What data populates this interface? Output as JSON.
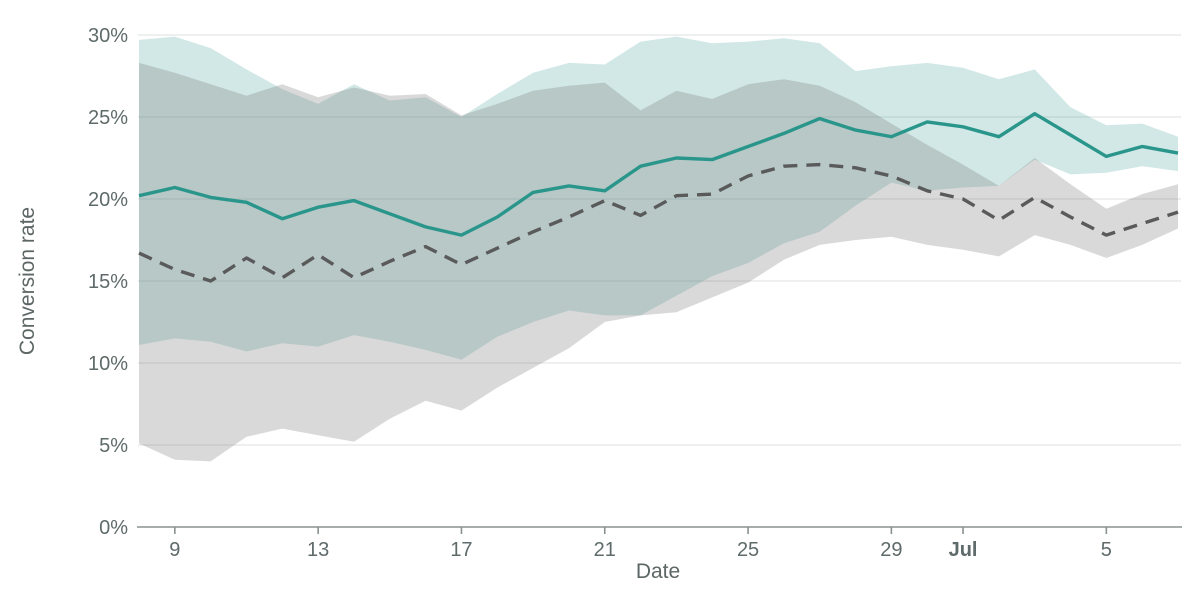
{
  "chart_data": {
    "type": "line",
    "title": "",
    "xlabel": "Date",
    "ylabel": "Conversion rate",
    "grid": true,
    "legend": "none",
    "ylim": [
      0,
      30
    ],
    "y_ticks": [
      {
        "value": 0,
        "label": "0%"
      },
      {
        "value": 5,
        "label": "5%"
      },
      {
        "value": 10,
        "label": "10%"
      },
      {
        "value": 15,
        "label": "15%"
      },
      {
        "value": 20,
        "label": "20%"
      },
      {
        "value": 25,
        "label": "25%"
      },
      {
        "value": 30,
        "label": "30%"
      }
    ],
    "x": [
      "Jun 8",
      "Jun 9",
      "Jun 10",
      "Jun 11",
      "Jun 12",
      "Jun 13",
      "Jun 14",
      "Jun 15",
      "Jun 16",
      "Jun 17",
      "Jun 18",
      "Jun 19",
      "Jun 20",
      "Jun 21",
      "Jun 22",
      "Jun 23",
      "Jun 24",
      "Jun 25",
      "Jun 26",
      "Jun 27",
      "Jun 28",
      "Jun 29",
      "Jun 30",
      "Jul 1",
      "Jul 2",
      "Jul 3",
      "Jul 4",
      "Jul 5",
      "Jul 6",
      "Jul 7"
    ],
    "x_ticks": [
      {
        "index": 1,
        "label": "9",
        "bold": false
      },
      {
        "index": 5,
        "label": "13",
        "bold": false
      },
      {
        "index": 9,
        "label": "17",
        "bold": false
      },
      {
        "index": 13,
        "label": "21",
        "bold": false
      },
      {
        "index": 17,
        "label": "25",
        "bold": false
      },
      {
        "index": 21,
        "label": "29",
        "bold": false
      },
      {
        "index": 23,
        "label": "Jul",
        "bold": true
      },
      {
        "index": 27,
        "label": "5",
        "bold": false
      }
    ],
    "series": [
      {
        "name": "series_solid_teal",
        "style": "solid",
        "values": [
          20.2,
          20.7,
          20.1,
          19.8,
          18.8,
          19.5,
          19.9,
          19.1,
          18.3,
          17.8,
          18.9,
          20.4,
          20.8,
          20.5,
          22.0,
          22.5,
          22.4,
          23.2,
          24.0,
          24.9,
          24.2,
          23.8,
          24.7,
          24.4,
          23.8,
          25.2,
          23.9,
          22.6,
          23.2,
          22.8
        ],
        "band_upper": [
          29.7,
          29.9,
          29.2,
          27.9,
          26.7,
          25.8,
          27.0,
          26.0,
          26.2,
          25.0,
          26.4,
          27.7,
          28.3,
          28.2,
          29.6,
          29.9,
          29.5,
          29.6,
          29.8,
          29.5,
          27.8,
          28.1,
          28.3,
          28.0,
          27.3,
          27.9,
          25.6,
          24.5,
          24.6,
          23.8
        ],
        "band_lower": [
          11.1,
          11.5,
          11.3,
          10.7,
          11.2,
          11.0,
          11.7,
          11.3,
          10.8,
          10.2,
          11.6,
          12.5,
          13.2,
          12.9,
          12.9,
          14.1,
          15.3,
          16.1,
          17.3,
          18.0,
          19.6,
          21.0,
          20.5,
          20.7,
          20.8,
          22.4,
          21.5,
          21.6,
          22.0,
          21.7
        ]
      },
      {
        "name": "series_dashed_gray",
        "style": "dashed",
        "values": [
          16.7,
          15.7,
          15.0,
          16.4,
          15.2,
          16.6,
          15.2,
          16.2,
          17.1,
          16.0,
          17.0,
          18.0,
          18.9,
          19.9,
          19.0,
          20.2,
          20.3,
          21.4,
          22.0,
          22.1,
          21.9,
          21.4,
          20.5,
          20.0,
          18.7,
          20.1,
          18.9,
          17.8,
          18.5,
          19.2
        ],
        "band_upper": [
          28.3,
          27.7,
          27.0,
          26.3,
          27.0,
          26.2,
          26.8,
          26.3,
          26.4,
          25.1,
          25.8,
          26.6,
          26.9,
          27.1,
          25.4,
          26.6,
          26.1,
          27.0,
          27.3,
          26.9,
          25.9,
          24.6,
          23.3,
          22.1,
          20.8,
          22.5,
          20.9,
          19.4,
          20.3,
          20.9
        ],
        "band_lower": [
          5.1,
          4.1,
          4.0,
          5.5,
          6.0,
          5.6,
          5.2,
          6.6,
          7.7,
          7.1,
          8.5,
          9.7,
          10.9,
          12.5,
          12.9,
          13.1,
          14.0,
          14.9,
          16.3,
          17.2,
          17.5,
          17.7,
          17.2,
          16.9,
          16.5,
          17.8,
          17.2,
          16.4,
          17.2,
          18.2
        ]
      }
    ],
    "colors": {
      "teal_line": "#2a968b",
      "teal_band": "rgba(44,152,141,0.22)",
      "gray_line": "#5a5a5a",
      "gray_band": "rgba(115,115,115,0.27)",
      "gridline": "#e3e7e6",
      "axis": "#8a9191",
      "text": "#5f6a6a"
    }
  }
}
